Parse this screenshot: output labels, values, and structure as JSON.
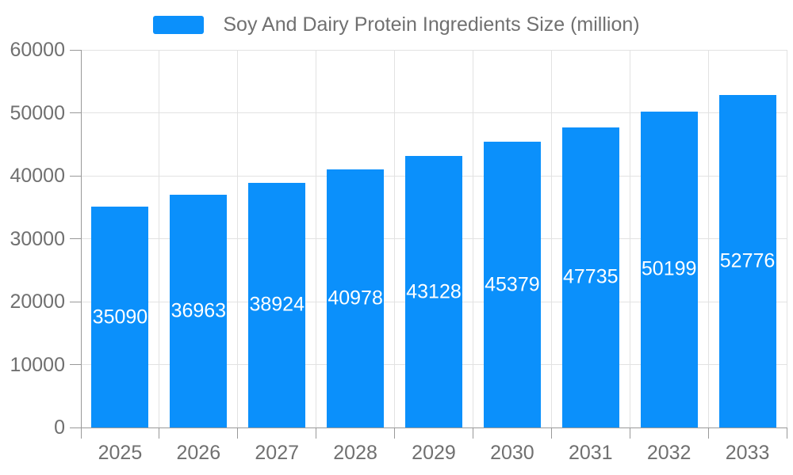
{
  "legend": {
    "label": "Soy And Dairy Protein Ingredients Size (million)"
  },
  "colors": {
    "bar": "#0b90fb",
    "axis": "#999999",
    "grid": "#e2e2e2",
    "axis_text": "#707070",
    "bar_label_text": "#ffffff",
    "background": "#ffffff"
  },
  "chart_data": {
    "type": "bar",
    "title": "",
    "legend": [
      "Soy And Dairy Protein Ingredients Size (million)"
    ],
    "legend_position": "top-center",
    "categories": [
      "2025",
      "2026",
      "2027",
      "2028",
      "2029",
      "2030",
      "2031",
      "2032",
      "2033"
    ],
    "series": [
      {
        "name": "Soy And Dairy Protein Ingredients Size (million)",
        "values": [
          35090,
          36963,
          38924,
          40978,
          43128,
          45379,
          47735,
          50199,
          52776
        ]
      }
    ],
    "values": [
      35090,
      36963,
      38924,
      40978,
      43128,
      45379,
      47735,
      50199,
      52776
    ],
    "bar_value_labels": [
      "35090",
      "36963",
      "38924",
      "40978",
      "43128",
      "45379",
      "47735",
      "50199",
      "52776"
    ],
    "value_label_position": "inside-middle",
    "xlabel": "",
    "ylabel": "",
    "ylim": [
      0,
      60000
    ],
    "ytick_step": 10000,
    "ytick_labels": [
      "0",
      "10000",
      "20000",
      "30000",
      "40000",
      "50000",
      "60000"
    ],
    "grid": true,
    "grid_horizontal": true,
    "grid_vertical": true
  }
}
